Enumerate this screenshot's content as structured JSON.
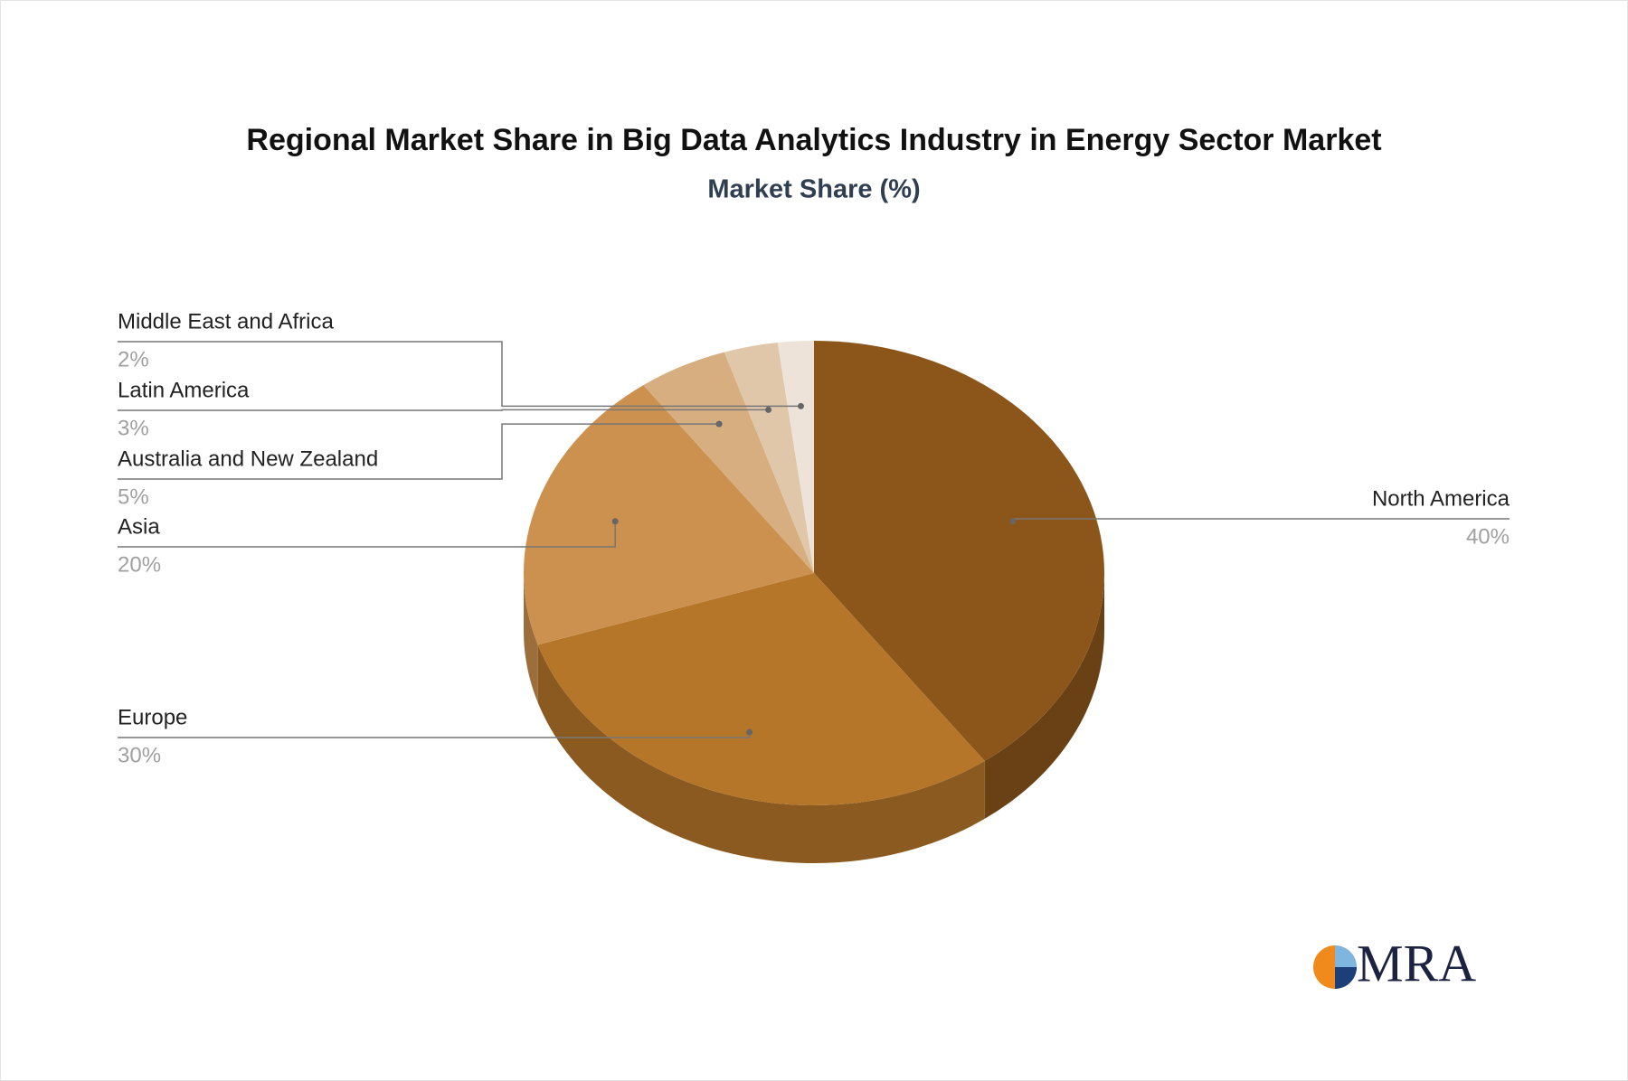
{
  "chart_data": {
    "type": "pie",
    "title": "Regional Market Share in Big Data Analytics Industry in Energy Sector Market",
    "subtitle": "Market Share (%)",
    "categories": [
      "North America",
      "Europe",
      "Asia",
      "Australia and New Zealand",
      "Latin America",
      "Middle East and Africa"
    ],
    "values": [
      40,
      30,
      20,
      5,
      3,
      2
    ],
    "value_labels": [
      "40%",
      "30%",
      "20%",
      "5%",
      "3%",
      "2%"
    ],
    "colors": [
      "#8c561b",
      "#b5762a",
      "#cc914e",
      "#d6ae80",
      "#e0c7aa",
      "#ede3d8"
    ]
  },
  "logo": "MRA"
}
